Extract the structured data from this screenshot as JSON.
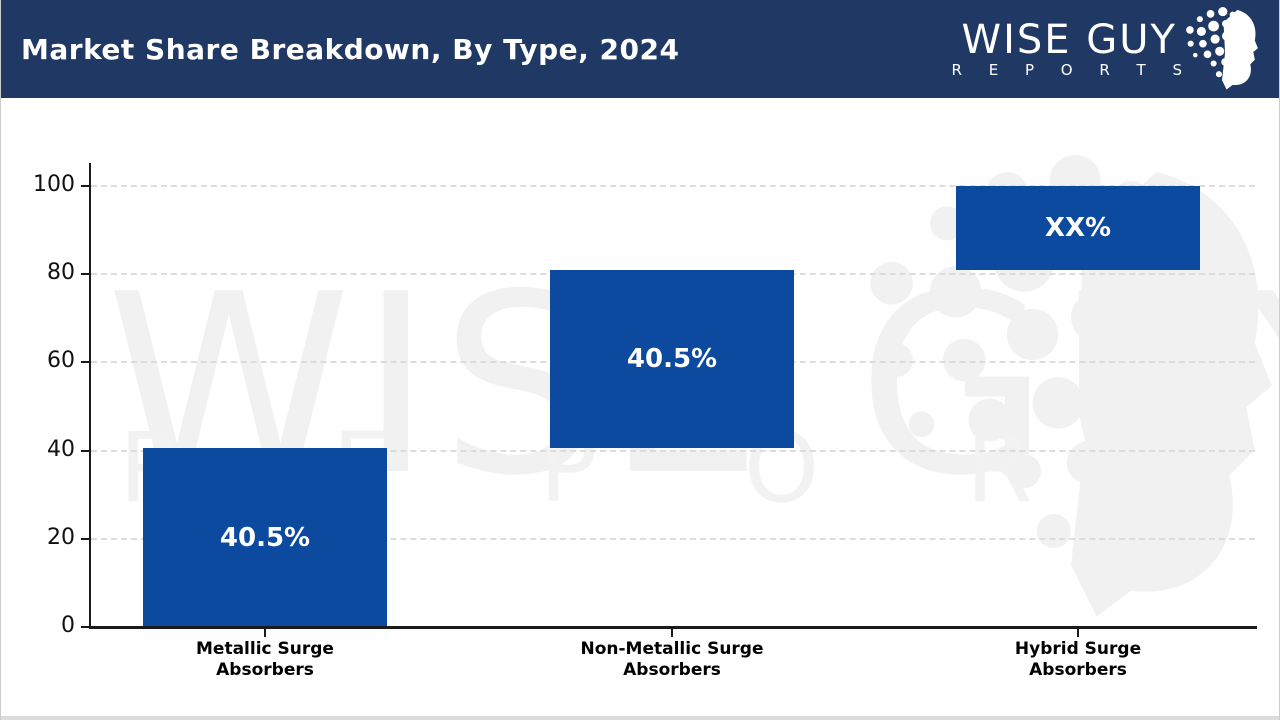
{
  "header": {
    "title": "Market Share Breakdown, By Type, 2024",
    "bg_color": "#1f3864",
    "logo": {
      "line1": "WISE GUY",
      "line2": "R E P O R T S"
    }
  },
  "watermark": {
    "line1": "WISE GUY",
    "line2": "R E P O R T S"
  },
  "chart_data": {
    "type": "bar",
    "subtype": "waterfall",
    "title": "Market Share Breakdown, By Type, 2024",
    "categories": [
      "Metallic Surge Absorbers",
      "Non-Metallic Surge Absorbers",
      "Hybrid Surge Absorbers"
    ],
    "segments": [
      {
        "category_lines": [
          "Metallic Surge",
          "Absorbers"
        ],
        "start": 0,
        "end": 40.5,
        "label": "40.5%"
      },
      {
        "category_lines": [
          "Non-Metallic Surge",
          "Absorbers"
        ],
        "start": 40.5,
        "end": 81,
        "label": "40.5%"
      },
      {
        "category_lines": [
          "Hybrid Surge",
          "Absorbers"
        ],
        "start": 81,
        "end": 100,
        "label": "XX%"
      }
    ],
    "yticks": [
      0,
      20,
      40,
      60,
      80,
      100
    ],
    "ylim": [
      0,
      105
    ],
    "xlabel": "",
    "ylabel": "",
    "legend": "none",
    "grid": "horizontal-dashed",
    "bar_color": "#0b4a9e",
    "bar_label_color": "#ffffff",
    "grid_color": "#dcdcdc",
    "axis_color": "#1a1a1a"
  }
}
